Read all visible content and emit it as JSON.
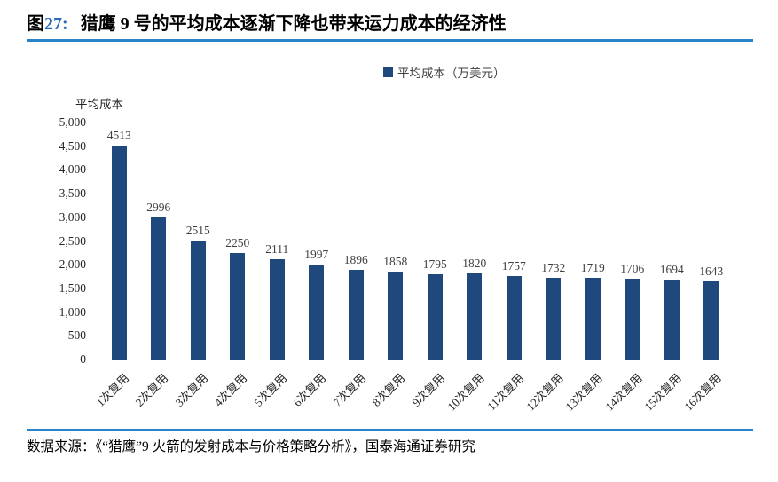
{
  "header": {
    "figure_label": "图",
    "figure_number": "27:",
    "title": "猎鹰 9 号的平均成本逐渐下降也带来运力成本的经济性"
  },
  "legend": {
    "label": "平均成本（万美元）"
  },
  "chart_data": {
    "type": "bar",
    "title": "猎鹰9号的平均成本逐渐下降也带来运力成本的经济性",
    "axis_title": "平均成本",
    "categories": [
      "1次复用",
      "2次复用",
      "3次复用",
      "4次复用",
      "5次复用",
      "6次复用",
      "7次复用",
      "8次复用",
      "9次复用",
      "10次复用",
      "11次复用",
      "12次复用",
      "13次复用",
      "14次复用",
      "15次复用",
      "16次复用"
    ],
    "values": [
      4513,
      2996,
      2515,
      2250,
      2111,
      1997,
      1896,
      1858,
      1795,
      1820,
      1757,
      1732,
      1719,
      1706,
      1694,
      1643
    ],
    "series_name": "平均成本（万美元）",
    "ylim": [
      0,
      5000
    ],
    "ytick_step": 500,
    "yticks_top_to_bottom": [
      "5,000",
      "4,500",
      "4,000",
      "3,500",
      "3,000",
      "2,500",
      "2,000",
      "1,500",
      "1,000",
      "500",
      "0"
    ],
    "grid": false,
    "legend_position": "top",
    "bar_color": "#1F497D",
    "xlabel": "",
    "ylabel": "平均成本"
  },
  "footer": {
    "source": "数据来源：《“猎鹰”9 火箭的发射成本与价格策略分析》，国泰海通证券研究"
  },
  "colors": {
    "bar": "#1F497D",
    "accent_rule": "#2A84C7",
    "figure_number": "#2B6CB8",
    "value_label": "#3F3F3F",
    "tick_label": "#262626",
    "baseline": "#D9D9D9"
  }
}
